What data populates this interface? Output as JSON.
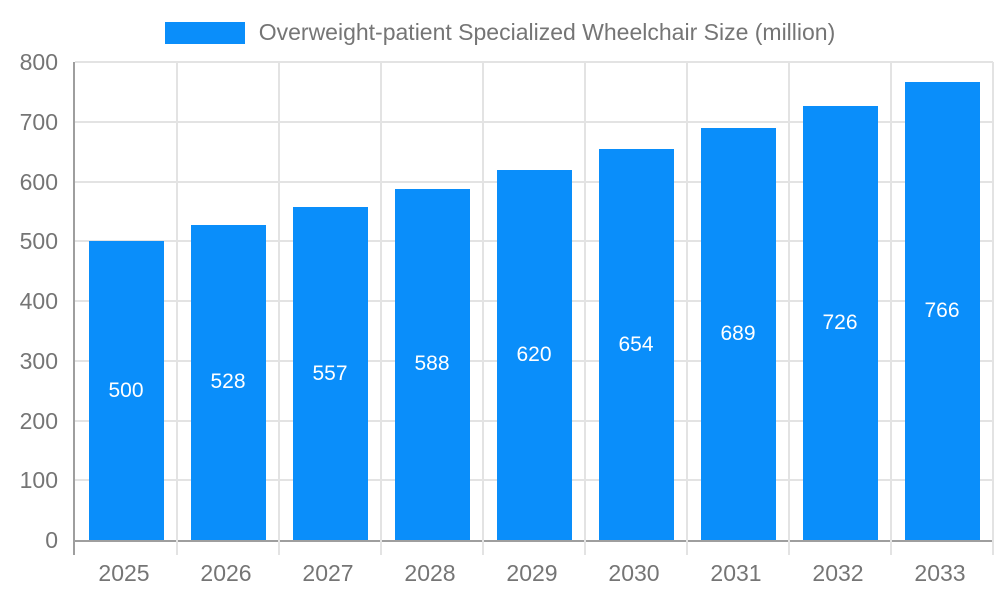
{
  "chart_data": {
    "type": "bar",
    "categories": [
      "2025",
      "2026",
      "2027",
      "2028",
      "2029",
      "2030",
      "2031",
      "2032",
      "2033"
    ],
    "series": [
      {
        "name": "Overweight-patient Specialized Wheelchair Size (million)",
        "values": [
          500,
          528,
          557,
          588,
          620,
          654,
          689,
          726,
          766
        ]
      }
    ],
    "legend": {
      "position": "top",
      "entries": [
        "Overweight-patient Specialized Wheelchair Size (million)"
      ]
    },
    "xlabel": "",
    "ylabel": "",
    "ylim": [
      0,
      800
    ],
    "yticks": [
      0,
      100,
      200,
      300,
      400,
      500,
      600,
      700,
      800
    ],
    "grid": true,
    "bar_label_position": "inside-center"
  },
  "colors": {
    "bar": "#0a8efa",
    "gridline": "#e3e3e3",
    "axis_line": "#9e9e9e",
    "axis_text": "#757575",
    "bar_label_text": "#ffffff",
    "background": "#ffffff"
  }
}
